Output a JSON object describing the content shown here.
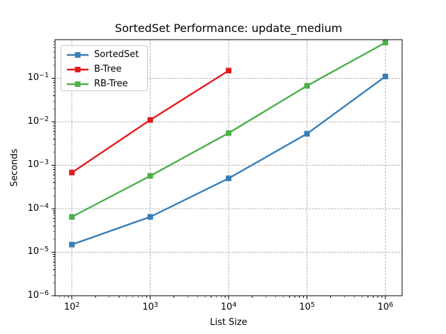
{
  "figure": {
    "background": "#ffffff",
    "spine_color": "#000000",
    "grid_color": "#b8b8b8",
    "legend_border_color": "#cccccc"
  },
  "chart_data": {
    "type": "line",
    "title": "SortedSet Performance: update_medium",
    "xlabel": "List Size",
    "ylabel": "Seconds",
    "x_scale": "log",
    "y_scale": "log",
    "xlim": [
      61,
      1634000
    ],
    "ylim": [
      1e-06,
      0.772
    ],
    "grid": true,
    "grid_style": "dashed",
    "legend_position": "upper left",
    "x_ticks": [
      100,
      1000,
      10000,
      100000,
      1000000
    ],
    "x_tick_labels": [
      "10^2",
      "10^3",
      "10^4",
      "10^5",
      "10^6"
    ],
    "y_ticks": [
      1e-06,
      1e-05,
      0.0001,
      0.001,
      0.01,
      0.1
    ],
    "y_tick_labels": [
      "10^−6",
      "10^−5",
      "10^−4",
      "10^−3",
      "10^−2",
      "10^−1"
    ],
    "series": [
      {
        "name": "SortedSet",
        "color": "#377eb8",
        "marker": "square",
        "x": [
          100,
          1000,
          10000,
          100000,
          1000000
        ],
        "y": [
          1.5e-05,
          6.5e-05,
          0.0005,
          0.0053,
          0.11
        ]
      },
      {
        "name": "B-Tree",
        "color": "#e41a1c",
        "marker": "square",
        "x": [
          100,
          1000,
          10000
        ],
        "y": [
          0.00068,
          0.011,
          0.15
        ]
      },
      {
        "name": "RB-Tree",
        "color": "#4daf4a",
        "marker": "square",
        "x": [
          100,
          1000,
          10000,
          100000,
          1000000
        ],
        "y": [
          6.5e-05,
          0.00057,
          0.0055,
          0.067,
          0.66
        ]
      }
    ]
  }
}
